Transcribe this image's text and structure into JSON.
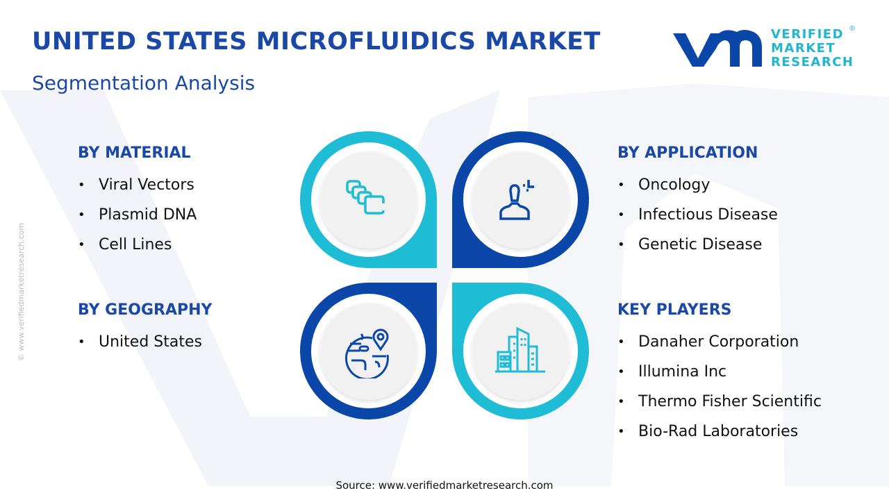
{
  "header": {
    "title": "UNITED STATES MICROFLUIDICS MARKET",
    "subtitle": "Segmentation Analysis"
  },
  "logo": {
    "line1": "VERIFIED",
    "line2": "MARKET",
    "line3": "RESEARCH",
    "registered": "®"
  },
  "side_watermark": "© www.verifiedmarketresearch.com",
  "colors": {
    "dark_blue": "#0a47a9",
    "cyan": "#1fbcd6",
    "title": "#1a48a6"
  },
  "segments": {
    "material": {
      "title": "BY MATERIAL",
      "items": [
        "Viral Vectors",
        "Plasmid DNA",
        "Cell Lines"
      ],
      "icon": "stacked-cards-icon"
    },
    "application": {
      "title": "BY APPLICATION",
      "items": [
        "Oncology",
        "Infectious Disease",
        "Genetic Disease"
      ],
      "icon": "person-icon"
    },
    "geography": {
      "title": "BY GEOGRAPHY",
      "items": [
        "United States"
      ],
      "icon": "globe-pin-icon"
    },
    "players": {
      "title": "KEY PLAYERS",
      "items": [
        "Danaher Corporation",
        "Illumina Inc",
        "Thermo Fisher Scientific",
        "Bio-Rad Laboratories"
      ],
      "icon": "buildings-icon"
    }
  },
  "source": "Source: www.verifiedmarketresearch.com"
}
